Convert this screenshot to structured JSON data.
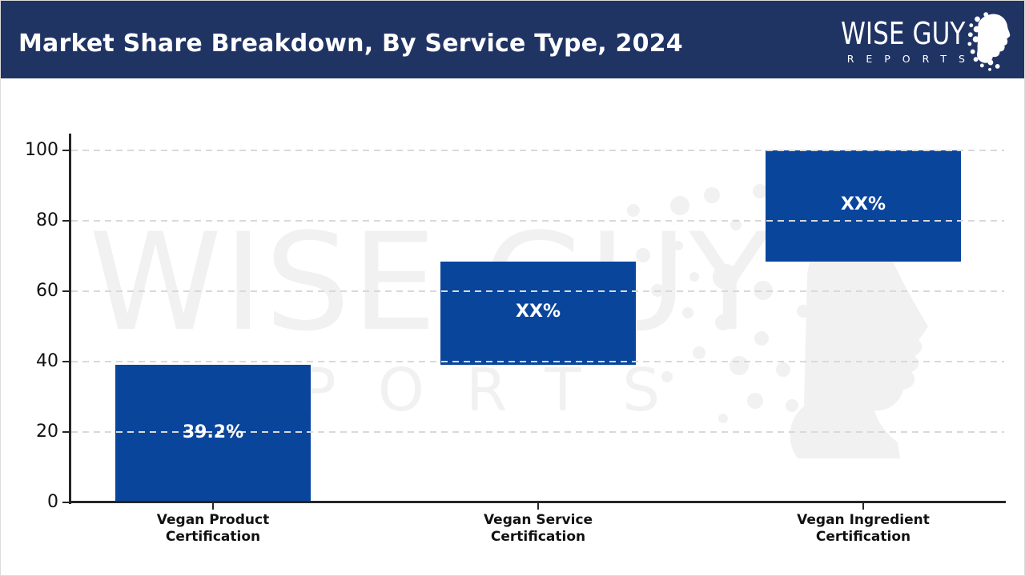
{
  "header": {
    "title": "Market Share Breakdown, By Service Type, 2024",
    "logo": {
      "wordmark": "WISE GUY",
      "subtext": "REPORTS"
    }
  },
  "watermark": {
    "wordmark": "WISE GUY",
    "subtext": "REPORTS"
  },
  "icons": {
    "logo_head": "dotted-head-profile",
    "watermark_head": "dotted-head-profile"
  },
  "chart_data": {
    "type": "bar",
    "subtype": "waterfall",
    "title": "Market Share Breakdown, By Service Type, 2024",
    "categories": [
      {
        "name": "Vegan Product Certification",
        "lines": [
          "Vegan Product",
          "Certification"
        ]
      },
      {
        "name": "Vegan Service Certification",
        "lines": [
          "Vegan Service",
          "Certification"
        ]
      },
      {
        "name": "Vegan Ingredient Certification",
        "lines": [
          "Vegan Ingredient",
          "Certification"
        ]
      }
    ],
    "segments": [
      {
        "category": "Vegan Product Certification",
        "start": 0,
        "end": 39.2,
        "value_label": "39.2%"
      },
      {
        "category": "Vegan Service Certification",
        "start": 39.2,
        "end": 68.5,
        "value_label": "XX%"
      },
      {
        "category": "Vegan Ingredient Certification",
        "start": 68.5,
        "end": 100,
        "value_label": "XX%"
      }
    ],
    "xlabel": "",
    "ylabel": "",
    "ylim": [
      0,
      100
    ],
    "yticks": [
      0,
      20,
      40,
      60,
      80,
      100
    ],
    "grid": "horizontal-dashed",
    "legend": "none"
  },
  "colors": {
    "header_bg": "#203464",
    "header_text": "#ffffff",
    "bar": "#0a459c",
    "bar_label": "#ffffff",
    "axis": "#262626",
    "grid": "#d9d9d9",
    "tick_text": "#111111",
    "watermark": "#f1f1f2",
    "page_bg": "#ffffff",
    "page_border": "#dcdcdc"
  }
}
